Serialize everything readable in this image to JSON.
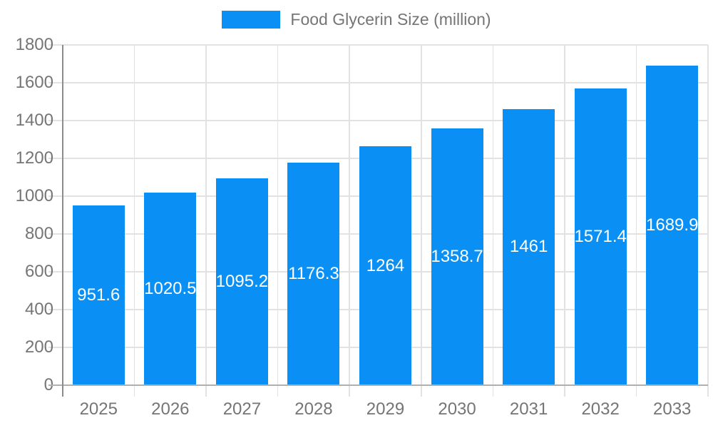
{
  "legend": {
    "title": "Food Glycerin Size (million)"
  },
  "chart_data": {
    "type": "bar",
    "title": "Food Glycerin Size (million)",
    "categories": [
      "2025",
      "2026",
      "2027",
      "2028",
      "2029",
      "2030",
      "2031",
      "2032",
      "2033"
    ],
    "values": [
      951.6,
      1020.5,
      1095.2,
      1176.3,
      1264,
      1358.7,
      1461,
      1571.4,
      1689.9
    ],
    "value_labels": [
      "951.6",
      "1020.5",
      "1095.2",
      "1176.3",
      "1264",
      "1358.7",
      "1461",
      "1571.4",
      "1689.9"
    ],
    "xlabel": "",
    "ylabel": "",
    "ylim": [
      0,
      1800
    ],
    "yticks": [
      0,
      200,
      400,
      600,
      800,
      1000,
      1200,
      1400,
      1600,
      1800
    ],
    "grid": true,
    "legend_position": "top",
    "colors": {
      "bar": "#0a90f5",
      "bar_label": "#ffffff",
      "axis_text": "#757575",
      "grid_line": "#e2e2e2",
      "baseline": "#b0b0b0",
      "axis_line": "#8c8c8c",
      "background": "#ffffff"
    }
  }
}
